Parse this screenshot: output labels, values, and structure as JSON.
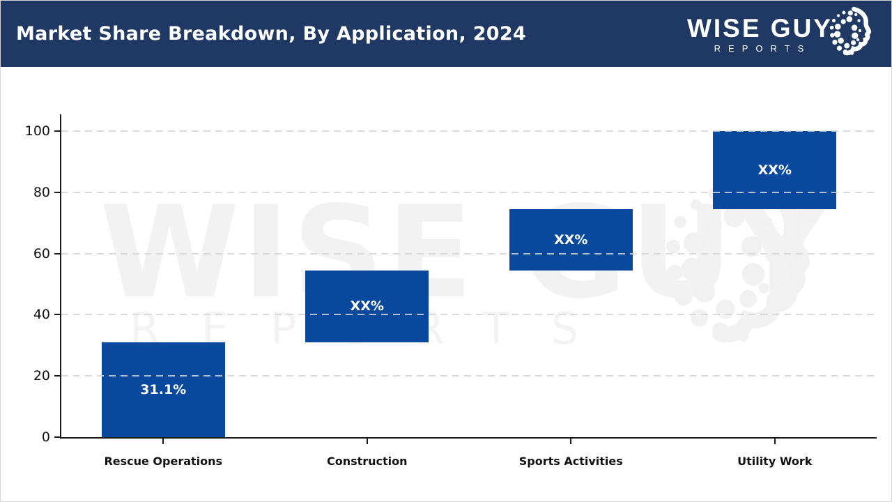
{
  "header": {
    "title": "Market Share Breakdown, By Application, 2024",
    "logo": {
      "wordmark": "WISE GUY",
      "subtext": "REPORTS"
    }
  },
  "watermark": {
    "line1": "WISE GUY",
    "line2": "REPORTS"
  },
  "chart_data": {
    "type": "bar",
    "subtype": "waterfall-stacked",
    "title": "Market Share Breakdown, By Application, 2024",
    "categories": [
      "Rescue Operations",
      "Construction",
      "Sports Activities",
      "Utility Work"
    ],
    "segments": [
      {
        "category": "Rescue Operations",
        "start": 0,
        "end": 31.1,
        "label": "31.1%"
      },
      {
        "category": "Construction",
        "start": 31.1,
        "end": 54.5,
        "label": "XX%"
      },
      {
        "category": "Sports Activities",
        "start": 54.5,
        "end": 74.5,
        "label": "XX%"
      },
      {
        "category": "Utility Work",
        "start": 74.5,
        "end": 100,
        "label": "XX%"
      }
    ],
    "yticks": [
      0,
      20,
      40,
      60,
      80,
      100
    ],
    "ylim": [
      0,
      105.5
    ],
    "xlabel": "",
    "ylabel": "",
    "grid": "dashed-horizontal",
    "legend": "none",
    "colors": {
      "bar": "#08489d",
      "bar_label": "#ffffff",
      "axis": "#1a1a1a",
      "grid": "#d9d9d9",
      "header_bg": "#1f3864",
      "watermark": "#f2f2f2"
    }
  }
}
